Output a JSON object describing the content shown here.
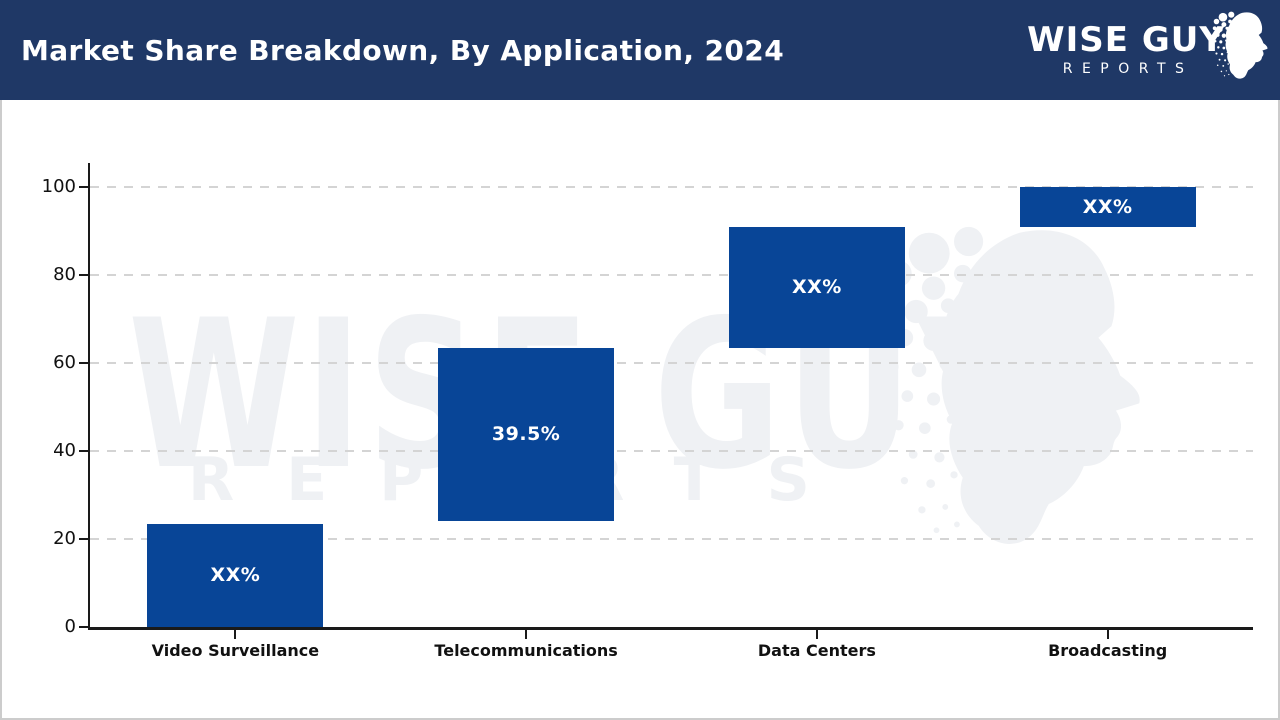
{
  "header": {
    "logo": {
      "line1": "WISE GUY",
      "line2": "REPORTS"
    }
  },
  "watermark": {
    "line1": "WISE GUY",
    "line2": "REPORTS"
  },
  "colors": {
    "header_bg": "#1f3866",
    "title": "#ffffff",
    "bar": "#084597",
    "bar_label": "#ffffff",
    "grid": "#d4d4d4",
    "axis": "#1a1a1a",
    "tick_label": "#111111",
    "watermark": "#eff1f4",
    "page_bg": "#ffffff",
    "page_border": "#cccccc"
  },
  "chart_data": {
    "type": "bar",
    "variant": "floating-waterfall",
    "title": "Market Share Breakdown, By Application, 2024",
    "categories": [
      "Video Surveillance",
      "Telecommunications",
      "Data Centers",
      "Broadcasting"
    ],
    "bars": [
      {
        "category": "Video Surveillance",
        "start": 0,
        "end": 23.5,
        "label": "XX%"
      },
      {
        "category": "Telecommunications",
        "start": 24,
        "end": 63.5,
        "label": "39.5%"
      },
      {
        "category": "Data Centers",
        "start": 63.5,
        "end": 91,
        "label": "XX%"
      },
      {
        "category": "Broadcasting",
        "start": 91,
        "end": 100,
        "label": "XX%"
      }
    ],
    "xlabel": "",
    "ylabel": "",
    "yticks": [
      0,
      20,
      40,
      60,
      80,
      100
    ],
    "ylim": [
      0,
      105
    ],
    "grid": "horizontal-dashed",
    "legend": "none"
  }
}
